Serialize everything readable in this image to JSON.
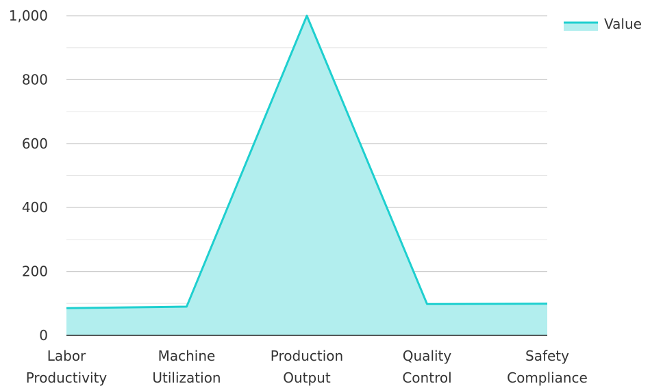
{
  "chart_data": {
    "type": "area",
    "categories": [
      [
        "Labor",
        "Productivity"
      ],
      [
        "Machine",
        "Utilization"
      ],
      [
        "Production",
        "Output"
      ],
      [
        "Quality",
        "Control"
      ],
      [
        "Safety",
        "Compliance"
      ]
    ],
    "series": [
      {
        "name": "Value",
        "values": [
          85,
          90,
          1000,
          98,
          99
        ]
      }
    ],
    "ylim": [
      0,
      1000
    ],
    "yticks": [
      0,
      200,
      400,
      600,
      800,
      1000
    ],
    "ytick_labels": [
      "0",
      "200",
      "400",
      "600",
      "800",
      "1,000"
    ],
    "grid": true,
    "legend_position": "top-right",
    "colors": {
      "line": "#1ecfcf",
      "fill": "#b2eeee",
      "grid": "#cccccc",
      "axis": "#222222"
    }
  }
}
